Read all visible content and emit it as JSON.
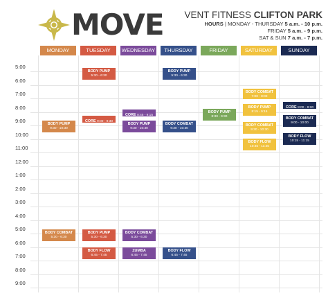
{
  "header": {
    "logo_text": "MOVE",
    "title_part1": "VENT FITNESS",
    "title_part2": "CLIFTON PARK",
    "hours_label": "HOURS",
    "hours_sep": "|",
    "line1_days": "MONDAY - THURSDAY",
    "line1_hours": "5 a.m. - 10 p.m.",
    "line2_days": "FRIDAY",
    "line2_hours": "5 a.m. - 9 p.m.",
    "line3_days": "SAT & SUN",
    "line3_hours": "7 a.m. - 7 p.m."
  },
  "colors": {
    "monday": "#d4884b",
    "tuesday": "#d45a43",
    "wednesday": "#7b4b9b",
    "thursday": "#35508a",
    "friday": "#7ba85b",
    "saturday": "#f1c23e",
    "sunday": "#1b2a52"
  },
  "days": [
    "MONDAY",
    "TUESDAY",
    "WEDNESDAY",
    "THURSDAY",
    "FRIDAY",
    "SATURDAY",
    "SUNDAY"
  ],
  "times": [
    "5:00",
    "6:00",
    "7:00",
    "8:00",
    "9:00",
    "10:00",
    "11:00",
    "12:00",
    "1:00",
    "2:00",
    "3:00",
    "4:00",
    "5:00",
    "6:00",
    "7:00",
    "8:00",
    "9:00"
  ],
  "classes": [
    {
      "day": 0,
      "name": "BODY PUMP",
      "time": "9:30 - 10:30"
    },
    {
      "day": 0,
      "name": "BODY COMBAT",
      "time": "5:30 - 6:30"
    },
    {
      "day": 1,
      "name": "BODY PUMP",
      "time": "5:30 - 6:30"
    },
    {
      "day": 1,
      "name": "CORE",
      "time": "9:00 - 9:30"
    },
    {
      "day": 1,
      "name": "BODY PUMP",
      "time": "5:30 - 6:30"
    },
    {
      "day": 1,
      "name": "BODY FLOW",
      "time": "6:45 - 7:45"
    },
    {
      "day": 2,
      "name": "CORE",
      "time": "8:45 - 9:15"
    },
    {
      "day": 2,
      "name": "BODY PUMP",
      "time": "9:30 - 10:30"
    },
    {
      "day": 2,
      "name": "BODY COMBAT",
      "time": "5:30 - 6:30"
    },
    {
      "day": 2,
      "name": "ZUMBA",
      "time": "6:45 - 7:45"
    },
    {
      "day": 3,
      "name": "BODY PUMP",
      "time": "5:30 - 6:30"
    },
    {
      "day": 3,
      "name": "BODY COMBAT",
      "time": "9:30 - 10:30"
    },
    {
      "day": 3,
      "name": "BODY FLOW",
      "time": "6:45 - 7:45"
    },
    {
      "day": 4,
      "name": "BODY PUMP",
      "time": "8:30 - 9:30"
    },
    {
      "day": 5,
      "name": "BODY COMBAT",
      "time": "7:00 - 8:00"
    },
    {
      "day": 5,
      "name": "BODY PUMP",
      "time": "8:15 - 9:15"
    },
    {
      "day": 5,
      "name": "BODY COMBAT",
      "time": "9:30 - 10:30"
    },
    {
      "day": 5,
      "name": "BODY FLOW",
      "time": "10:45 - 11:45"
    },
    {
      "day": 6,
      "name": "CORE",
      "time": "8:00 - 8:30"
    },
    {
      "day": 6,
      "name": "BODY COMBAT",
      "time": "9:00 - 10:00"
    },
    {
      "day": 6,
      "name": "BODY FLOW",
      "time": "10:15 - 11:15"
    }
  ]
}
